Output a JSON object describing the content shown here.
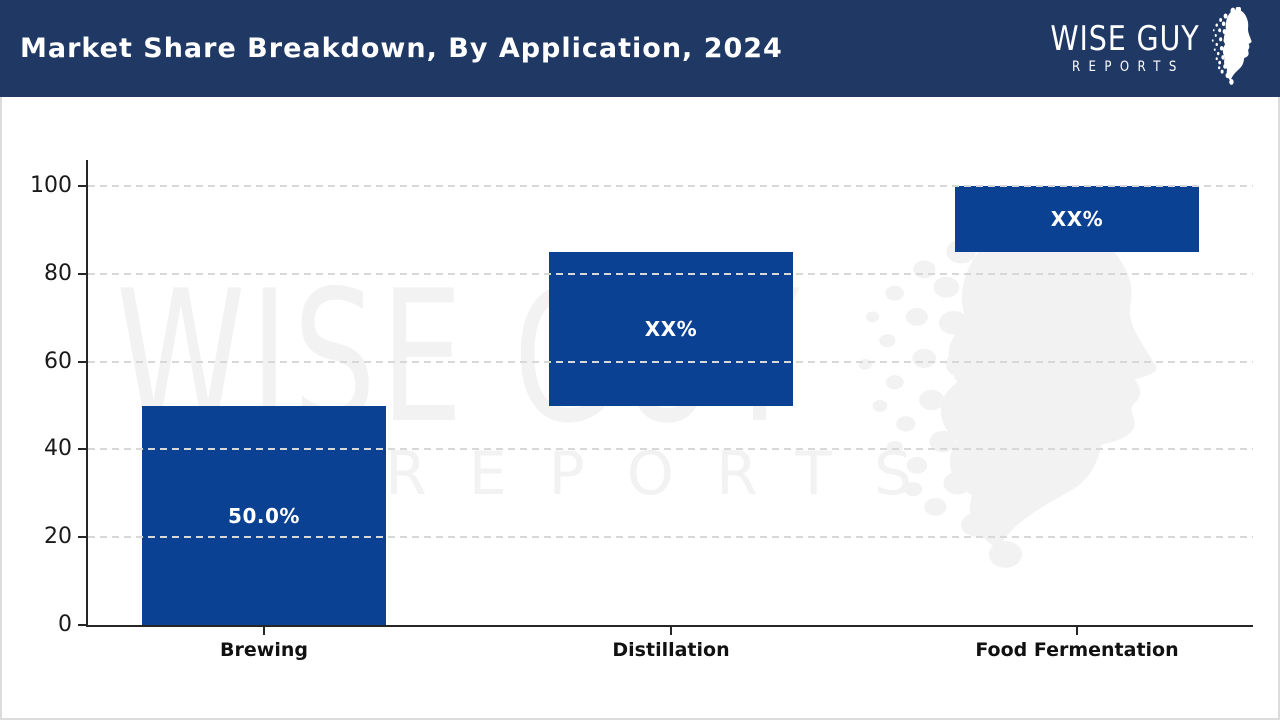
{
  "header": {
    "title": "Market Share Breakdown, By Application, 2024"
  },
  "logo": {
    "line1": "WISE GUY",
    "line2": "REPORTS"
  },
  "watermark": {
    "line1": "WISE GUY",
    "line2": "REPORTS"
  },
  "colors": {
    "header_bg": "#1f3864",
    "bar": "#0b4192",
    "grid": "#d8d8d8",
    "axis": "#262626",
    "bar_label": "#ffffff",
    "watermark": "#f2f2f2"
  },
  "chart_data": {
    "type": "bar",
    "variant": "waterfall",
    "title": "Market Share Breakdown, By Application, 2024",
    "categories": [
      "Brewing",
      "Distillation",
      "Food Fermentation"
    ],
    "bars": [
      {
        "category": "Brewing",
        "base": 0,
        "top": 50,
        "segment_value": 50,
        "label": "50.0%"
      },
      {
        "category": "Distillation",
        "base": 50,
        "top": 85,
        "segment_value": 35,
        "label": "XX%"
      },
      {
        "category": "Food Fermentation",
        "base": 85,
        "top": 100,
        "segment_value": 15,
        "label": "XX%"
      }
    ],
    "ylim": [
      0,
      100
    ],
    "yticks": [
      0,
      20,
      40,
      60,
      80,
      100
    ],
    "xlabel": "",
    "ylabel": "",
    "grid": "horizontal-dashed",
    "grid_above_bars": true,
    "legend": "none"
  }
}
